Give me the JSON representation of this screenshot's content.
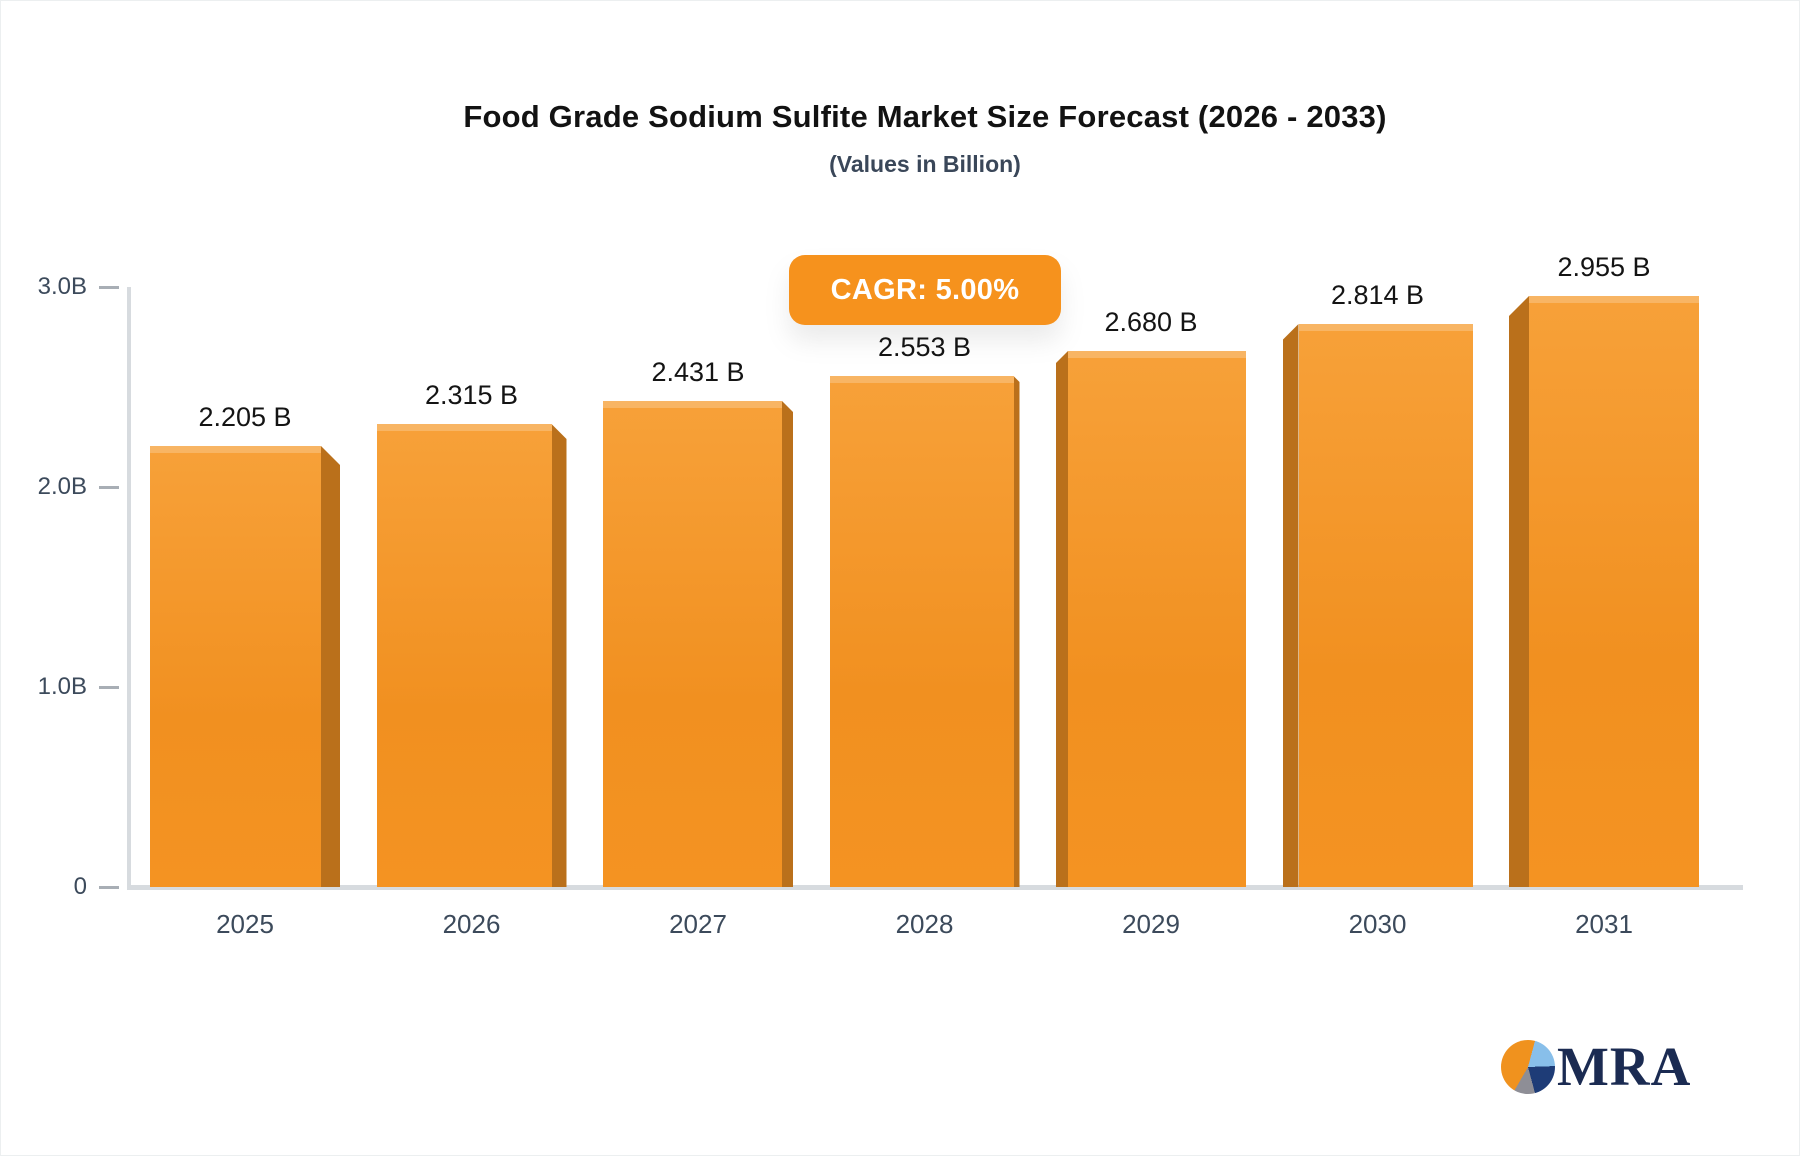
{
  "title": "Food Grade Sodium Sulfite Market Size Forecast (2026 - 2033)",
  "subtitle": "(Values in Billion)",
  "badge": {
    "label": "CAGR: 5.00%"
  },
  "logo": {
    "text": "MRA"
  },
  "colors": {
    "bar": "#f6921e",
    "bar_side": "#ba701b",
    "badge_bg": "#f6921d",
    "axis": "#d7dbdf",
    "tick_text": "#3c4a5b",
    "value_text": "#141414",
    "logo_navy": "#1b2b52",
    "pie_orange": "#f0921e",
    "pie_lightblue": "#88bfea",
    "pie_navy": "#1e3c77",
    "pie_gray": "#8e8e96"
  },
  "chart_data": {
    "type": "bar",
    "title": "Food Grade Sodium Sulfite Market Size Forecast (2026 - 2033)",
    "subtitle": "(Values in Billion)",
    "categories": [
      "2025",
      "2026",
      "2027",
      "2028",
      "2029",
      "2030",
      "2031"
    ],
    "values": [
      2.205,
      2.315,
      2.431,
      2.553,
      2.68,
      2.814,
      2.955
    ],
    "value_labels": [
      "2.205 B",
      "2.315 B",
      "2.431 B",
      "2.553 B",
      "2.680 B",
      "2.814 B",
      "2.955 B"
    ],
    "xlabel": "",
    "ylabel": "",
    "ylim": [
      0,
      3.0
    ],
    "yticks": [
      {
        "value": 3.0,
        "label": "3.0B"
      },
      {
        "value": 2.0,
        "label": "2.0B"
      },
      {
        "value": 1.0,
        "label": "1.0B"
      },
      {
        "value": 0.0,
        "label": "0"
      }
    ],
    "grid": false,
    "legend": false,
    "annotation": "CAGR: 5.00%"
  }
}
